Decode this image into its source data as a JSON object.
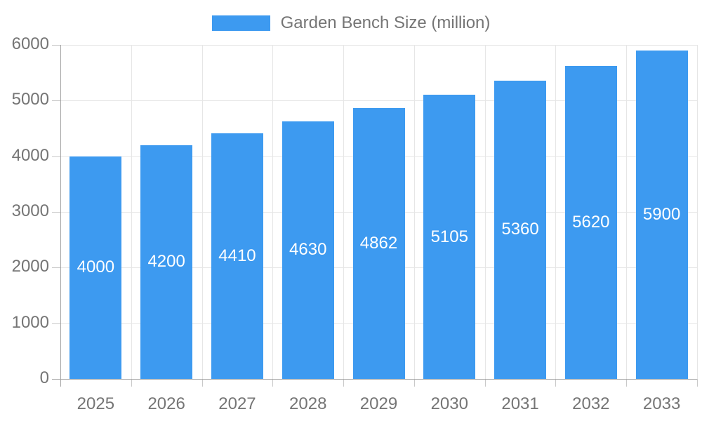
{
  "legend": {
    "items": [
      {
        "label": "Garden Bench Size (million)",
        "swatch_color": "#3d9af0"
      }
    ],
    "position": "top-center"
  },
  "chart_data": {
    "type": "bar",
    "title": "Garden Bench Size (million)",
    "categories": [
      "2025",
      "2026",
      "2027",
      "2028",
      "2029",
      "2030",
      "2031",
      "2032",
      "2033"
    ],
    "series": [
      {
        "name": "Garden Bench Size (million)",
        "values": [
          4000,
          4200,
          4410,
          4630,
          4862,
          5105,
          5360,
          5620,
          5900
        ]
      }
    ],
    "value_labels": [
      "4000",
      "4200",
      "4410",
      "4630",
      "4862",
      "5105",
      "5360",
      "5620",
      "5900"
    ],
    "xlabel": "",
    "ylabel": "",
    "ylim": [
      0,
      6000
    ],
    "yticks": [
      0,
      1000,
      2000,
      3000,
      4000,
      5000,
      6000
    ],
    "grid": true,
    "legend_position": "top-center",
    "colors": {
      "bar": "#3d9af0",
      "value_label": "#ffffff",
      "axis_text": "#757575",
      "grid_line": "#e6e6e6",
      "axis_line": "#a6a6a6",
      "tick_mark": "#c9c9c9",
      "background": "#ffffff"
    }
  }
}
